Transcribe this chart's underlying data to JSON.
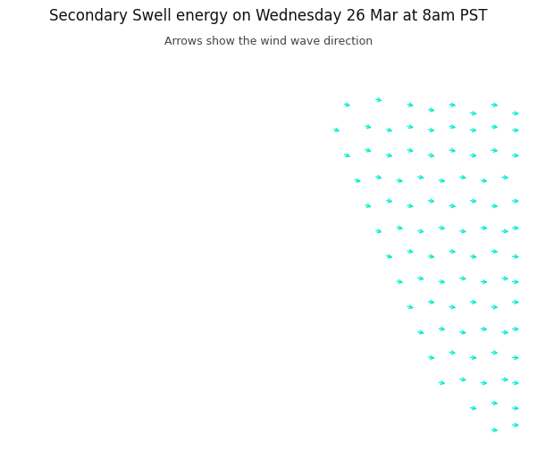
{
  "title": "Secondary Swell energy on Wednesday 26 Mar at 8am PST",
  "subtitle": "Arrows show the wind wave direction",
  "title_fontsize": 12,
  "subtitle_fontsize": 9,
  "ocean_color": "#000000",
  "land_color": "#888888",
  "arrow_color": "#00eecc",
  "header_bg": "#ffffff",
  "border_color": "#bbbbbb",
  "fig_width": 6.01,
  "fig_height": 5.13,
  "dpi": 100,
  "map_extent": [
    105.0,
    130.5,
    1.5,
    24.5
  ],
  "arrows": [
    [
      121.5,
      21.5,
      -20
    ],
    [
      123.0,
      21.8,
      -18
    ],
    [
      124.5,
      21.5,
      -16
    ],
    [
      125.5,
      21.2,
      -14
    ],
    [
      126.5,
      21.5,
      -12
    ],
    [
      127.5,
      21.0,
      -10
    ],
    [
      128.5,
      21.5,
      -8
    ],
    [
      129.5,
      21.0,
      -5
    ],
    [
      121.0,
      20.0,
      -22
    ],
    [
      122.5,
      20.2,
      -20
    ],
    [
      123.5,
      20.0,
      -18
    ],
    [
      124.5,
      20.2,
      -16
    ],
    [
      125.5,
      20.0,
      -14
    ],
    [
      126.5,
      20.2,
      -12
    ],
    [
      127.5,
      20.0,
      -10
    ],
    [
      128.5,
      20.2,
      -8
    ],
    [
      129.5,
      20.0,
      -5
    ],
    [
      121.5,
      18.5,
      -22
    ],
    [
      122.5,
      18.8,
      -20
    ],
    [
      123.5,
      18.5,
      -18
    ],
    [
      124.5,
      18.8,
      -16
    ],
    [
      125.5,
      18.5,
      -14
    ],
    [
      126.5,
      18.8,
      -12
    ],
    [
      127.5,
      18.5,
      -10
    ],
    [
      128.5,
      18.8,
      -8
    ],
    [
      129.5,
      18.5,
      -5
    ],
    [
      122.0,
      17.0,
      -20
    ],
    [
      123.0,
      17.2,
      -18
    ],
    [
      124.0,
      17.0,
      -16
    ],
    [
      125.0,
      17.2,
      -14
    ],
    [
      126.0,
      17.0,
      -12
    ],
    [
      127.0,
      17.2,
      -10
    ],
    [
      128.0,
      17.0,
      -8
    ],
    [
      129.0,
      17.2,
      -6
    ],
    [
      122.5,
      15.5,
      -20
    ],
    [
      123.5,
      15.8,
      -18
    ],
    [
      124.5,
      15.5,
      -16
    ],
    [
      125.5,
      15.8,
      -14
    ],
    [
      126.5,
      15.5,
      -12
    ],
    [
      127.5,
      15.8,
      -10
    ],
    [
      128.5,
      15.5,
      -8
    ],
    [
      129.5,
      15.8,
      -5
    ],
    [
      123.0,
      14.0,
      -18
    ],
    [
      124.0,
      14.2,
      -16
    ],
    [
      125.0,
      14.0,
      -14
    ],
    [
      126.0,
      14.2,
      -12
    ],
    [
      127.0,
      14.0,
      -10
    ],
    [
      128.0,
      14.2,
      -8
    ],
    [
      129.0,
      14.0,
      -6
    ],
    [
      129.5,
      14.2,
      -5
    ],
    [
      123.5,
      12.5,
      -18
    ],
    [
      124.5,
      12.8,
      -16
    ],
    [
      125.5,
      12.5,
      -14
    ],
    [
      126.5,
      12.8,
      -12
    ],
    [
      127.5,
      12.5,
      -10
    ],
    [
      128.5,
      12.8,
      -8
    ],
    [
      129.5,
      12.5,
      -5
    ],
    [
      124.0,
      11.0,
      -16
    ],
    [
      125.0,
      11.2,
      -14
    ],
    [
      126.0,
      11.0,
      -12
    ],
    [
      127.0,
      11.2,
      -10
    ],
    [
      128.0,
      11.0,
      -8
    ],
    [
      129.0,
      11.2,
      -6
    ],
    [
      129.5,
      11.0,
      -5
    ],
    [
      124.5,
      9.5,
      -16
    ],
    [
      125.5,
      9.8,
      -14
    ],
    [
      126.5,
      9.5,
      -12
    ],
    [
      127.5,
      9.8,
      -10
    ],
    [
      128.5,
      9.5,
      -8
    ],
    [
      129.5,
      9.8,
      -5
    ],
    [
      125.0,
      8.0,
      -14
    ],
    [
      126.0,
      8.2,
      -12
    ],
    [
      127.0,
      8.0,
      -10
    ],
    [
      128.0,
      8.2,
      -8
    ],
    [
      129.0,
      8.0,
      -6
    ],
    [
      129.5,
      8.2,
      -5
    ],
    [
      125.5,
      6.5,
      -14
    ],
    [
      126.5,
      6.8,
      -12
    ],
    [
      127.5,
      6.5,
      -10
    ],
    [
      128.5,
      6.8,
      -8
    ],
    [
      129.5,
      6.5,
      -5
    ],
    [
      126.0,
      5.0,
      -12
    ],
    [
      127.0,
      5.2,
      -10
    ],
    [
      128.0,
      5.0,
      -8
    ],
    [
      129.0,
      5.2,
      -6
    ],
    [
      129.5,
      5.0,
      -5
    ],
    [
      127.5,
      3.5,
      -10
    ],
    [
      128.5,
      3.8,
      -8
    ],
    [
      129.5,
      3.5,
      -5
    ],
    [
      128.5,
      2.2,
      -8
    ],
    [
      129.5,
      2.5,
      -5
    ]
  ]
}
